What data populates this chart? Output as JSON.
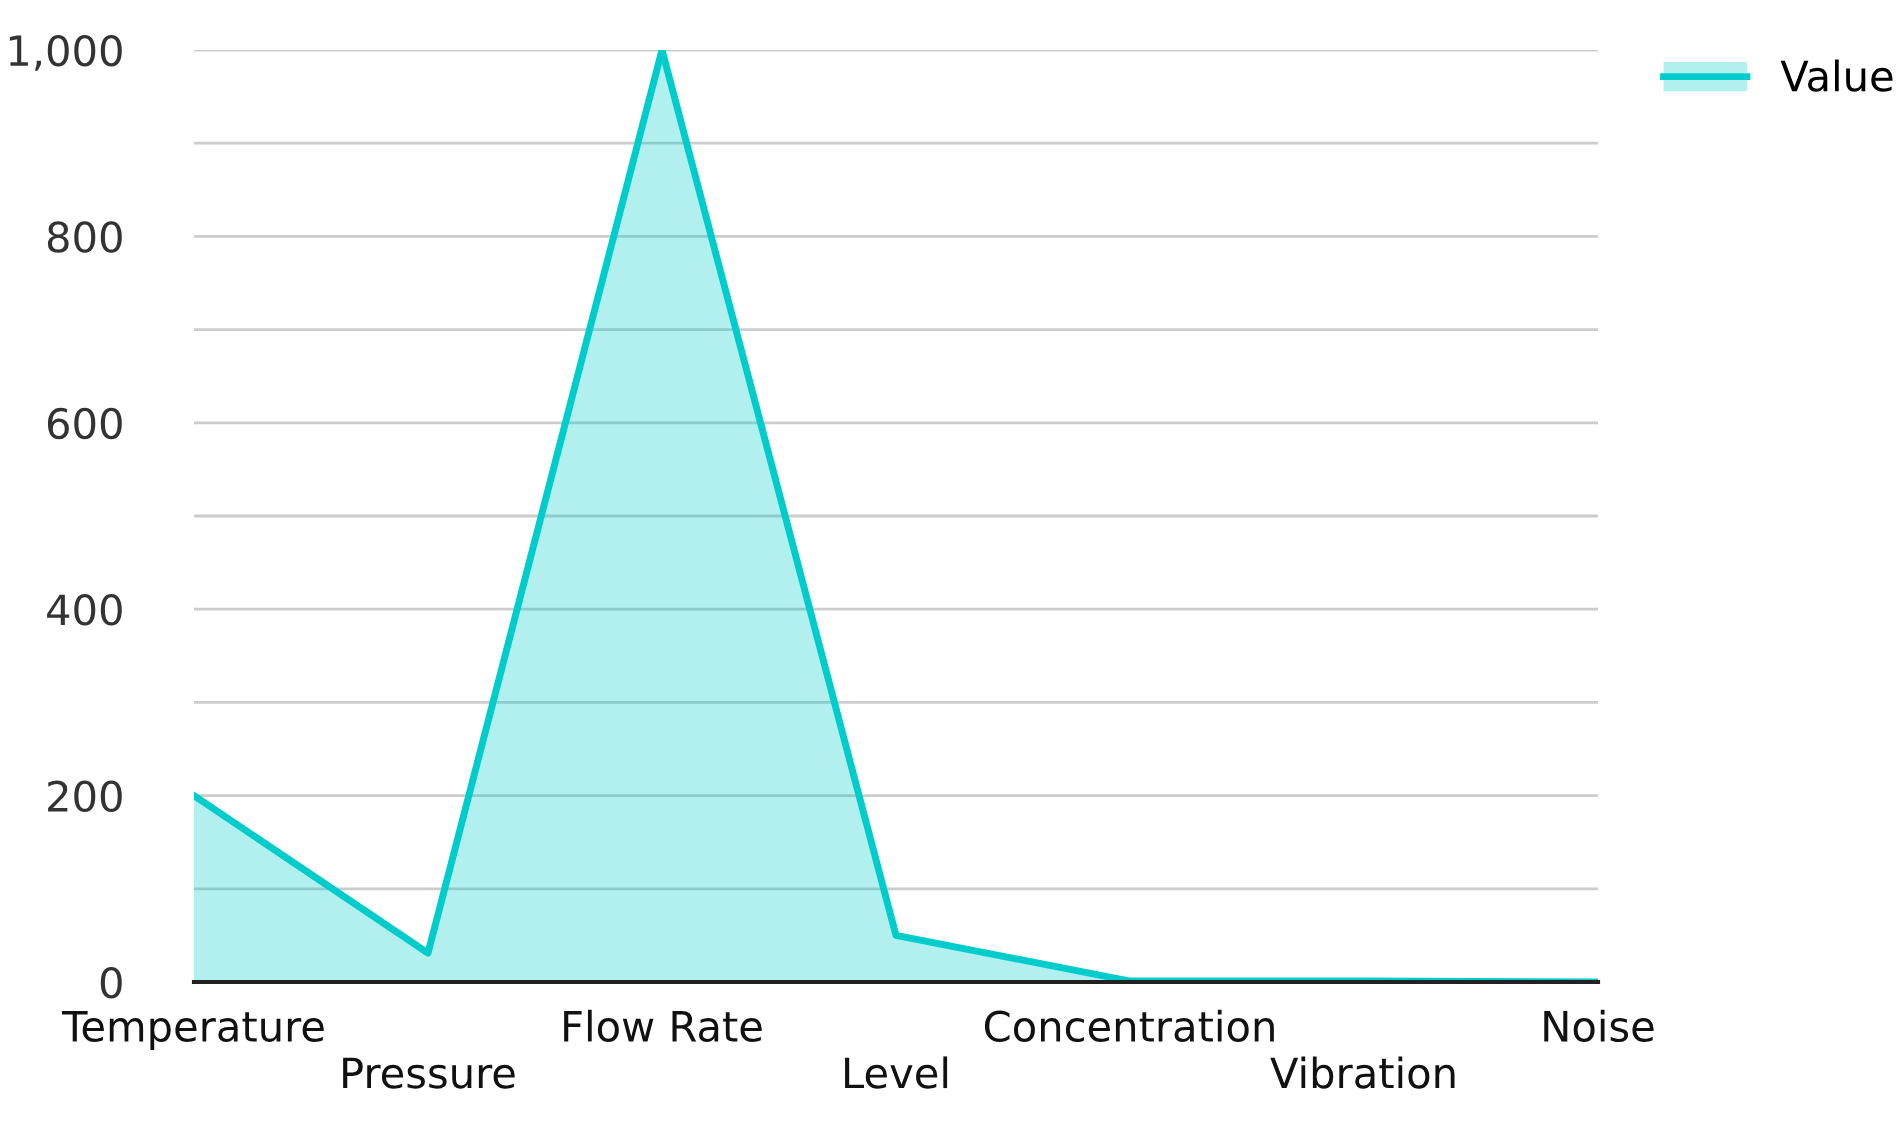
{
  "chart_data": {
    "type": "area",
    "categories": [
      "Temperature",
      "Pressure",
      "Flow Rate",
      "Level",
      "Concentration",
      "Vibration",
      "Noise"
    ],
    "series": [
      {
        "name": "Value",
        "color": "#00cccc",
        "values": [
          200,
          31,
          1000,
          50,
          1,
          1,
          0
        ]
      }
    ],
    "ylim": [
      0,
      1000
    ],
    "yticks": [
      0,
      {
        "value": 100,
        "label": null
      },
      200,
      {
        "value": 300,
        "label": null
      },
      400,
      {
        "value": 500,
        "label": null
      },
      600,
      {
        "value": 700,
        "label": null
      },
      800,
      {
        "value": 900,
        "label": null
      },
      {
        "value": 1000,
        "label": "1,000"
      }
    ],
    "grid": "y",
    "legend": "top right"
  }
}
